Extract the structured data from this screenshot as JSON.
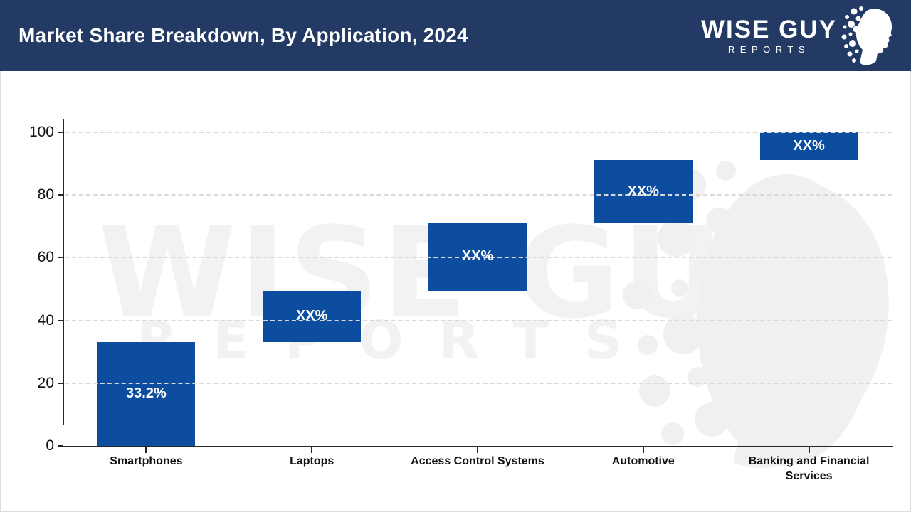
{
  "header": {
    "title": "Market Share Breakdown, By Application, 2024",
    "logo": {
      "line1": "WISE GUY",
      "line2": "REPORTS"
    }
  },
  "watermark": {
    "line1": "WISE GUY",
    "line2": "REPORTS"
  },
  "colors": {
    "header_bg": "#223a64",
    "bar": "#0d4da0",
    "bar_label": "#ffffff",
    "axis": "#262626",
    "grid": "#d9d9d9",
    "text": "#111111"
  },
  "chart_data": {
    "type": "bar",
    "subtype": "waterfall",
    "title": "Market Share Breakdown, By Application, 2024",
    "categories": [
      "Smartphones",
      "Laptops",
      "Access Control Systems",
      "Automotive",
      "Banking and Financial Services"
    ],
    "segments": [
      {
        "category": "Smartphones",
        "start": 0,
        "end": 33.2,
        "label": "33.2%"
      },
      {
        "category": "Laptops",
        "start": 33.2,
        "end": 49.5,
        "label": "XX%"
      },
      {
        "category": "Access Control Systems",
        "start": 49.5,
        "end": 71.2,
        "label": "XX%"
      },
      {
        "category": "Automotive",
        "start": 71.2,
        "end": 91.1,
        "label": "XX%"
      },
      {
        "category": "Banking and Financial Services",
        "start": 91.1,
        "end": 100,
        "label": "XX%"
      }
    ],
    "ylim": [
      0,
      100
    ],
    "yticks": [
      0,
      20,
      40,
      60,
      80,
      100
    ],
    "xlabel": "",
    "ylabel": "",
    "grid": "horizontal-dashed",
    "legend": "none",
    "bar_color": "#0d4da0",
    "value_labels_inside_bars": true
  }
}
